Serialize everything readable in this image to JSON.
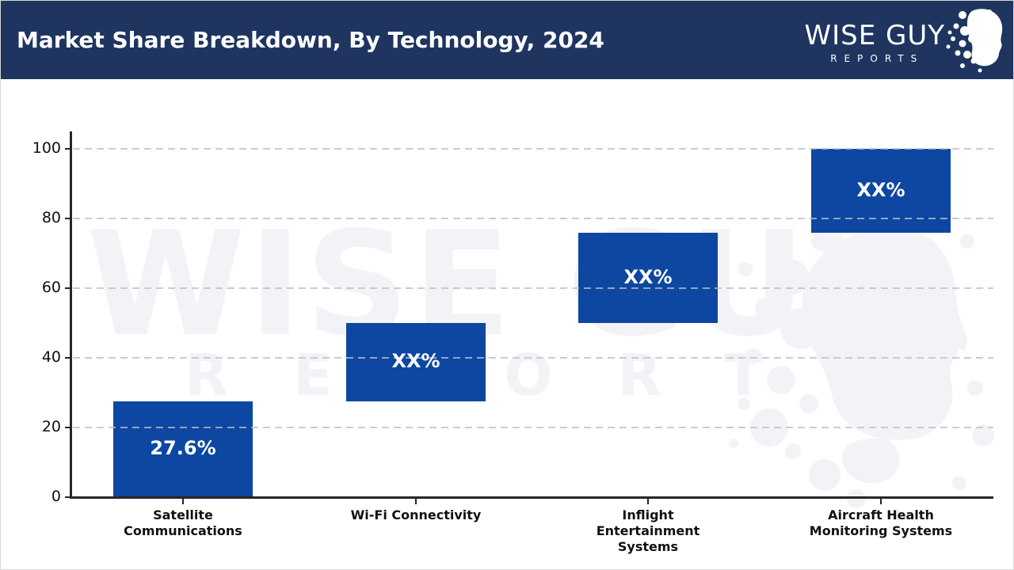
{
  "header": {
    "title": "Market Share Breakdown, By Technology, 2024",
    "bg_color": "#1f3560",
    "logo": {
      "line1": "WISE GUY",
      "line2": "REPORTS"
    }
  },
  "watermark": {
    "line1": "WISE GUY",
    "line2": "REPORTS"
  },
  "chart_data": {
    "type": "bar",
    "subtype": "waterfall",
    "title": "Market Share Breakdown, By Technology, 2024",
    "categories": [
      "Satellite\nCommunications",
      "Wi-Fi Connectivity",
      "Inflight\nEntertainment\nSystems",
      "Aircraft Health\nMonitoring Systems"
    ],
    "segments": [
      {
        "category": "Satellite Communications",
        "start": 0,
        "end": 27.6,
        "label": "27.6%"
      },
      {
        "category": "Wi-Fi Connectivity",
        "start": 27.6,
        "end": 50,
        "label": "XX%"
      },
      {
        "category": "Inflight Entertainment Systems",
        "start": 50,
        "end": 76,
        "label": "XX%"
      },
      {
        "category": "Aircraft Health Monitoring Systems",
        "start": 76,
        "end": 100,
        "label": "XX%"
      }
    ],
    "ylim": [
      0,
      100
    ],
    "yticks": [
      0,
      20,
      40,
      60,
      80,
      100
    ],
    "xlabel": "",
    "ylabel": "",
    "grid": "horizontal-dashed",
    "grid_on_top": true,
    "legend": "none",
    "bar_color": "#0d47a1",
    "value_label_color": "#ffffff",
    "axis_color": "#262626"
  }
}
